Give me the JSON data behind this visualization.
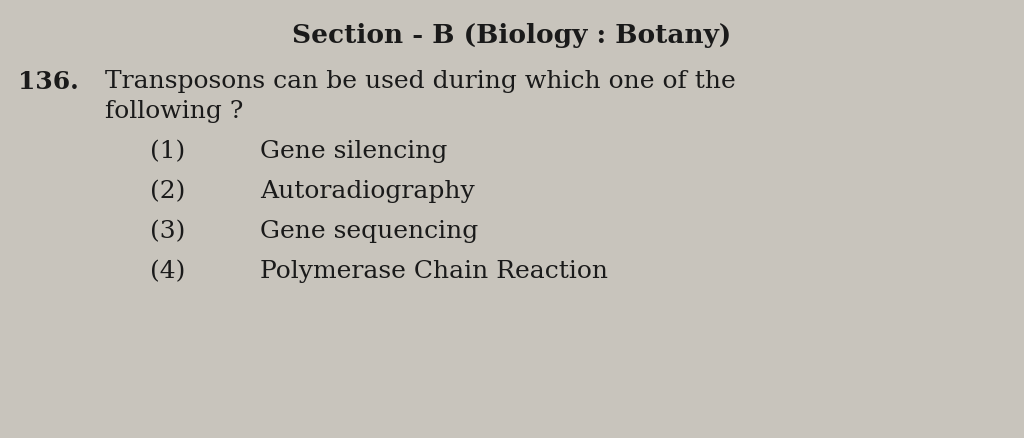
{
  "title": "Section - B (Biology : Botany)",
  "question_number": "136.",
  "question_line1": "Transposons can be used during which one of the",
  "question_line2": "following ?",
  "options": [
    {
      "num": "(1)",
      "text": "Gene silencing"
    },
    {
      "num": "(2)",
      "text": "Autoradiography"
    },
    {
      "num": "(3)",
      "text": "Gene sequencing"
    },
    {
      "num": "(4)",
      "text": "Polymerase Chain Reaction"
    }
  ],
  "bg_color": "#c8c4bc",
  "text_color": "#1a1a1a",
  "title_fontsize": 19,
  "question_fontsize": 18,
  "option_fontsize": 18,
  "fig_width": 10.24,
  "fig_height": 4.38,
  "dpi": 100
}
